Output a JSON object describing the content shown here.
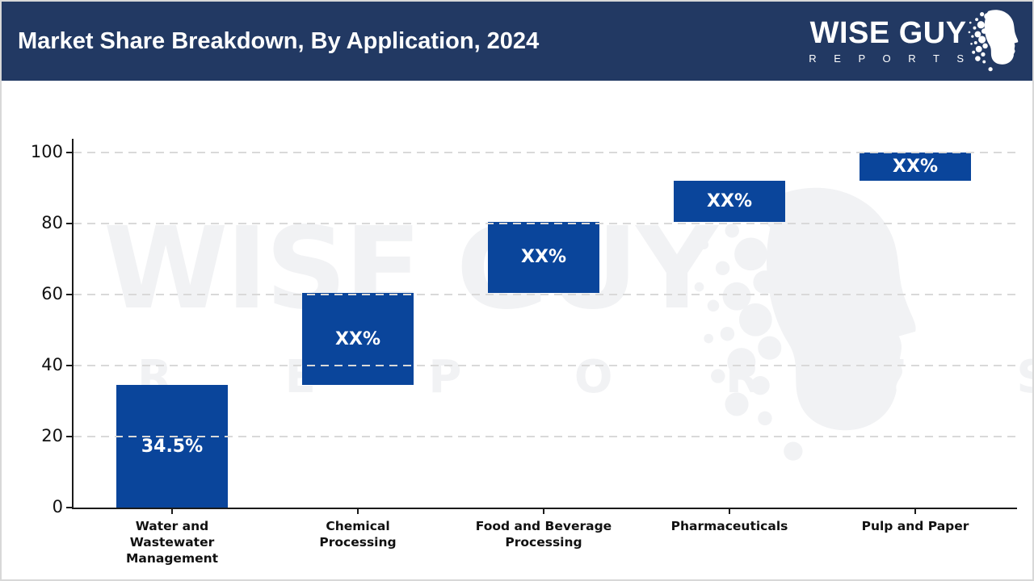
{
  "header": {
    "title": "Market Share Breakdown, By Application, 2024",
    "logo": {
      "line1": "WISE GUY",
      "line2": "R E P O R T S"
    }
  },
  "watermark": {
    "line1": "WISE GUY",
    "line2": "R E P O R T S"
  },
  "colors": {
    "header_background": "#223963",
    "bar": "#0a459b",
    "gridline": "#d9d9d9",
    "watermark": "#f1f2f4",
    "axis": "#1a1a1a",
    "bar_label_text": "#ffffff"
  },
  "chart_data": {
    "type": "bar",
    "subtype": "waterfall",
    "title": "Market Share Breakdown, By Application, 2024",
    "categories": [
      [
        "Water and",
        "Wastewater",
        "Management"
      ],
      [
        "Chemical",
        "Processing"
      ],
      [
        "Food and Beverage",
        "Processing"
      ],
      [
        "Pharmaceuticals"
      ],
      [
        "Pulp and Paper"
      ]
    ],
    "segments": [
      {
        "start": 0,
        "end": 34.5,
        "label": "34.5%"
      },
      {
        "start": 34.5,
        "end": 60.5,
        "label": "XX%"
      },
      {
        "start": 60.5,
        "end": 80.5,
        "label": "XX%"
      },
      {
        "start": 80.5,
        "end": 92,
        "label": "XX%"
      },
      {
        "start": 92,
        "end": 100,
        "label": "XX%"
      }
    ],
    "xlabel": "",
    "ylabel": "",
    "yticks": [
      0,
      20,
      40,
      60,
      80,
      100
    ],
    "ylim": [
      0,
      100
    ],
    "grid": "horizontal-dashed",
    "legend": "none"
  }
}
